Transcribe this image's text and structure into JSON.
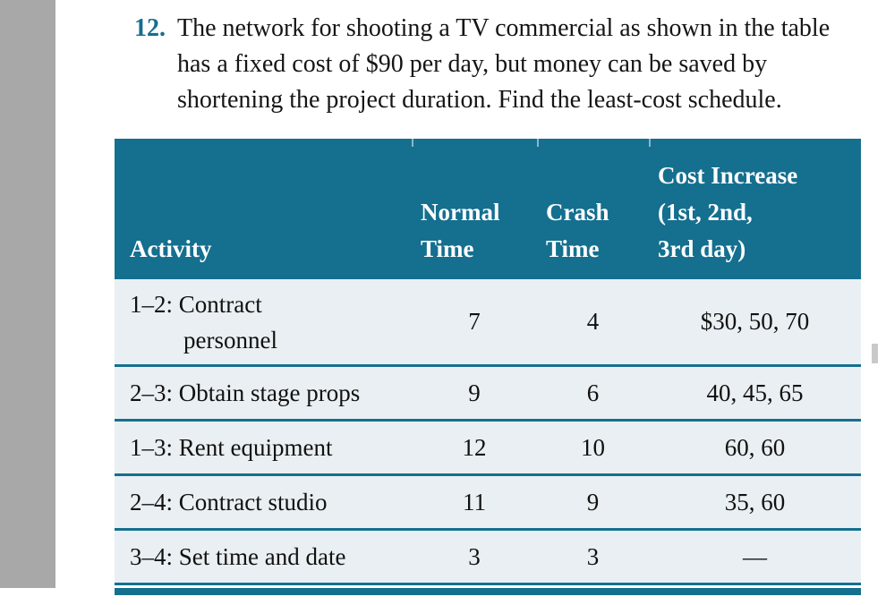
{
  "colors": {
    "teal": "#156f8f",
    "row_bg": "#e9eff2",
    "margin_gray": "#a8a8a8"
  },
  "problem": {
    "number": "12.",
    "text": "The network for shooting a TV commercial as shown in the table has a fixed cost of $90 per day, but money can be saved by shortening the project duration. Find the least-cost schedule."
  },
  "table": {
    "headers": [
      "Activity",
      "Normal\nTime",
      "Crash\nTime",
      "Cost Increase\n(1st, 2nd,\n3rd day)"
    ],
    "rows": [
      {
        "activity": "1–2: Contract\npersonnel",
        "normal_time": "7",
        "crash_time": "4",
        "cost_increase": "$30, 50, 70"
      },
      {
        "activity": "2–3: Obtain stage props",
        "normal_time": "9",
        "crash_time": "6",
        "cost_increase": "40, 45, 65"
      },
      {
        "activity": "1–3: Rent equipment",
        "normal_time": "12",
        "crash_time": "10",
        "cost_increase": "60, 60"
      },
      {
        "activity": "2–4: Contract studio",
        "normal_time": "11",
        "crash_time": "9",
        "cost_increase": "35, 60"
      },
      {
        "activity": "3–4: Set time and date",
        "normal_time": "3",
        "crash_time": "3",
        "cost_increase": "—"
      }
    ]
  }
}
